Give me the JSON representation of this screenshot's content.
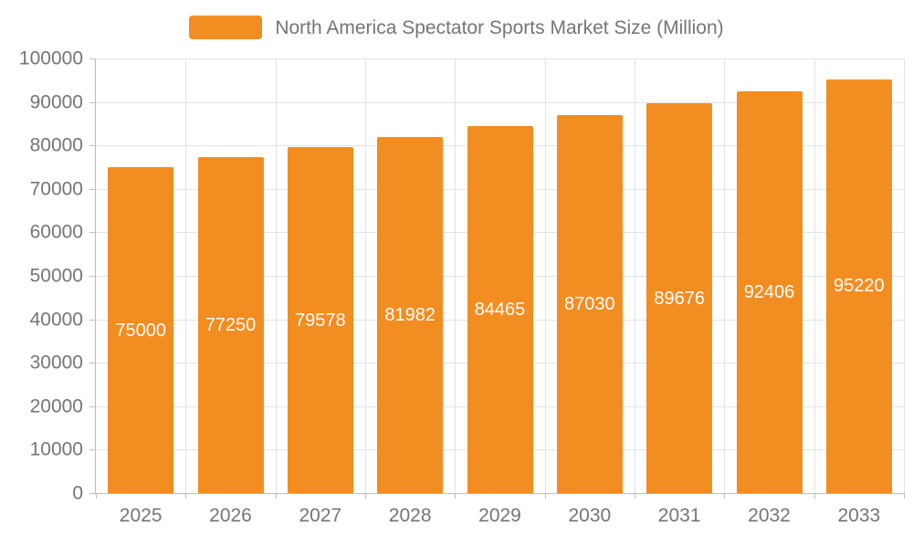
{
  "chart_data": {
    "type": "bar",
    "title": "North America Spectator Sports Market Size (Million)",
    "categories": [
      "2025",
      "2026",
      "2027",
      "2028",
      "2029",
      "2030",
      "2031",
      "2032",
      "2033"
    ],
    "values": [
      75000,
      77250,
      79578,
      81982,
      84465,
      87030,
      89676,
      92406,
      95220
    ],
    "xlabel": "",
    "ylabel": "",
    "ylim": [
      0,
      100000
    ],
    "ytick_step": 10000,
    "grid": true,
    "legend_position": "top",
    "colors": {
      "bar": "#F28D21",
      "bar_value_label": "#FFFFFF",
      "axis_text": "#757575",
      "grid_line": "#E3E3E3",
      "axis_line": "#BDBDBD"
    }
  }
}
